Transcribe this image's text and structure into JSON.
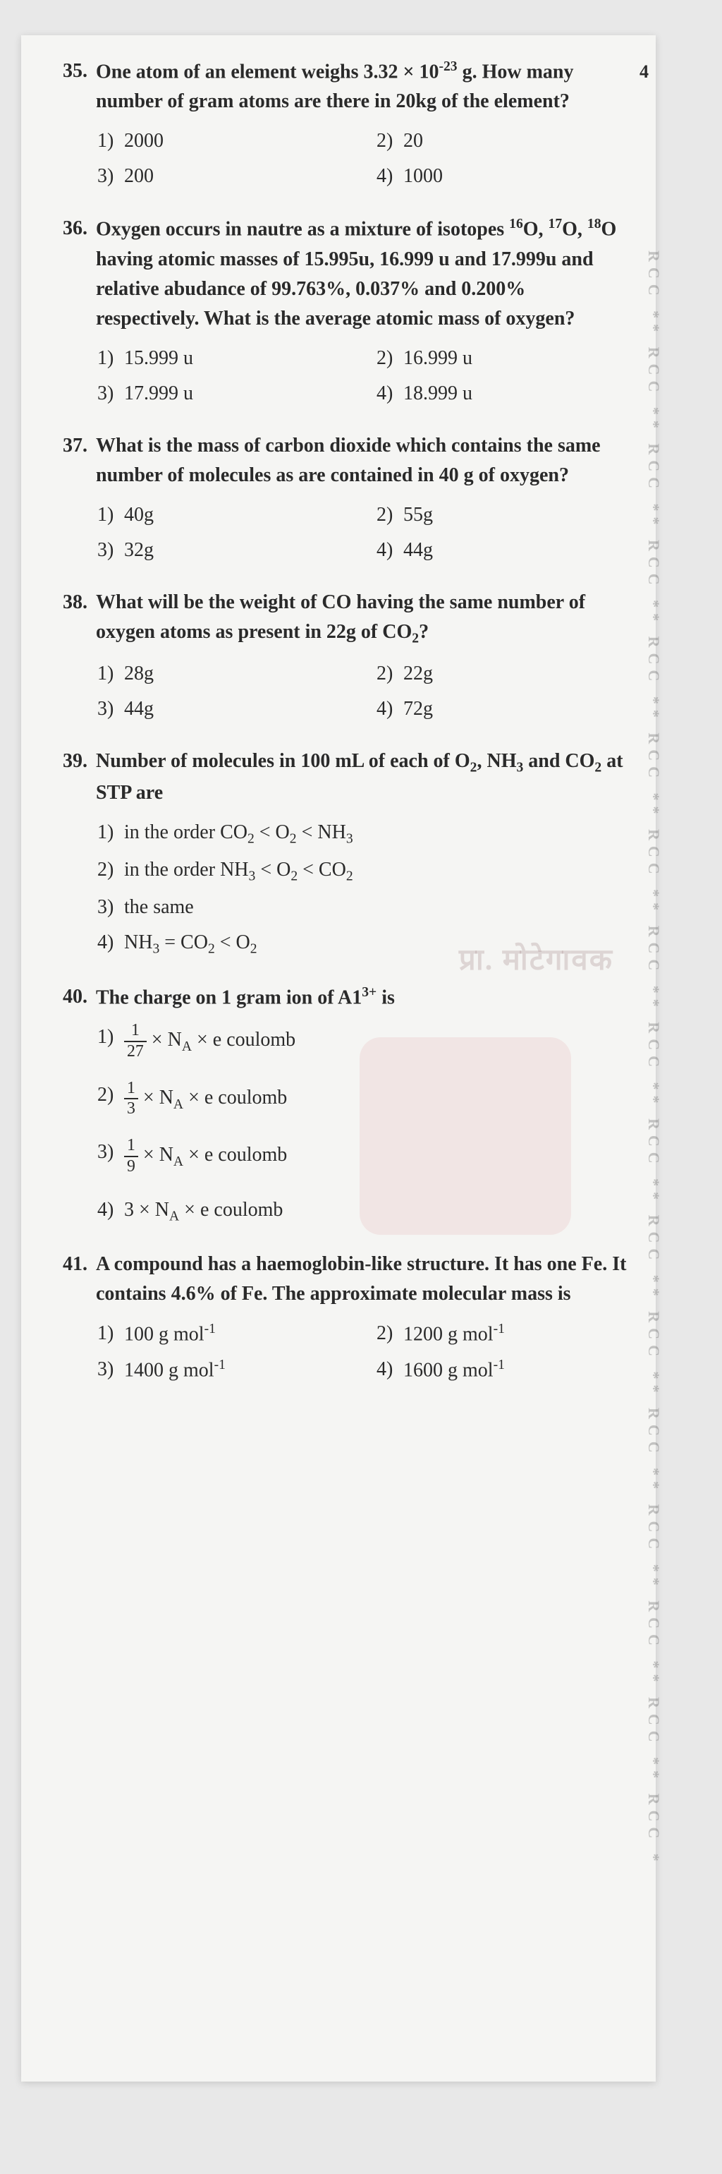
{
  "watermarks": {
    "side": "RCC ** RCC ** RCC ** RCC ** RCC ** RCC ** RCC ** RCC ** RCC ** RCC ** RCC ** RCC ** RCC ** RCC ** RCC ** RCC ** RCC *",
    "center": "प्रा. मोटेगावक"
  },
  "questions": [
    {
      "num": "35.",
      "stem_html": "One atom of an element weighs 3.32 × 10<sup>-23</sup> g. How many number of gram atoms are there in 20kg of the element?",
      "margin": "4",
      "options": [
        {
          "n": "1)",
          "t": "2000"
        },
        {
          "n": "2)",
          "t": "20"
        },
        {
          "n": "3)",
          "t": "200"
        },
        {
          "n": "4)",
          "t": "1000"
        }
      ],
      "layout": "two-col"
    },
    {
      "num": "36.",
      "stem_html": "Oxygen occurs in nautre as a mixture of isotopes <sup>16</sup>O, <sup>17</sup>O, <sup>18</sup>O having atomic masses of 15.995u, 16.999 u and 17.999u and relative abudance of 99.763%, 0.037% and 0.200% respectively. What is the average atomic mass of oxygen?",
      "options": [
        {
          "n": "1)",
          "t": "15.999 u"
        },
        {
          "n": "2)",
          "t": "16.999 u"
        },
        {
          "n": "3)",
          "t": "17.999 u"
        },
        {
          "n": "4)",
          "t": "18.999 u"
        }
      ],
      "layout": "two-col"
    },
    {
      "num": "37.",
      "stem_html": "What is the mass of carbon dioxide which contains the same number of molecules as are contained in 40 g of oxygen?",
      "options": [
        {
          "n": "1)",
          "t": "40g"
        },
        {
          "n": "2)",
          "t": "55g"
        },
        {
          "n": "3)",
          "t": "32g"
        },
        {
          "n": "4)",
          "t": "44g"
        }
      ],
      "layout": "two-col"
    },
    {
      "num": "38.",
      "stem_html": "What will be the weight of CO having the same number of oxygen atoms as present in 22g of CO<sub>2</sub>?",
      "options": [
        {
          "n": "1)",
          "t": "28g"
        },
        {
          "n": "2)",
          "t": "22g"
        },
        {
          "n": "3)",
          "t": "44g"
        },
        {
          "n": "4)",
          "t": "72g"
        }
      ],
      "layout": "two-col"
    },
    {
      "num": "39.",
      "stem_html": "Number of molecules in 100 mL of each of O<sub>2</sub>, NH<sub>3</sub> and CO<sub>2</sub> at STP are",
      "options": [
        {
          "n": "1)",
          "t_html": "in the order CO<sub>2</sub> < O<sub>2</sub> < NH<sub>3</sub>"
        },
        {
          "n": "2)",
          "t_html": "in the order NH<sub>3</sub> < O<sub>2</sub> < CO<sub>2</sub>"
        },
        {
          "n": "3)",
          "t_html": "the same"
        },
        {
          "n": "4)",
          "t_html": "NH<sub>3</sub> = CO<sub>2</sub> < O<sub>2</sub>"
        }
      ],
      "layout": "one-col"
    },
    {
      "num": "40.",
      "stem_html": "The charge on 1 gram ion of A1<sup>3+</sup> is",
      "options": [
        {
          "n": "1)",
          "t_html": "<span class=\"frac\"><span class=\"num\">1</span><span class=\"den\">27</span></span> × N<sub>A</sub> × e coulomb"
        },
        {
          "n": "2)",
          "t_html": "<span class=\"frac\"><span class=\"num\">1</span><span class=\"den\">3</span></span> × N<sub>A</sub> × e coulomb"
        },
        {
          "n": "3)",
          "t_html": "<span class=\"frac\"><span class=\"num\">1</span><span class=\"den\">9</span></span> × N<sub>A</sub> × e coulomb"
        },
        {
          "n": "4)",
          "t_html": "3 × N<sub>A</sub> × e coulomb"
        }
      ],
      "layout": "one-col-spaced"
    },
    {
      "num": "41.",
      "stem_html": "A compound has a haemoglobin-like structure. It has one Fe. It contains 4.6% of Fe. The approximate molecular mass is",
      "options": [
        {
          "n": "1)",
          "t_html": "100 g mol<sup>-1</sup>"
        },
        {
          "n": "2)",
          "t_html": "1200 g mol<sup>-1</sup>"
        },
        {
          "n": "3)",
          "t_html": "1400 g mol<sup>-1</sup>"
        },
        {
          "n": "4)",
          "t_html": "1600 g mol<sup>-1</sup>"
        }
      ],
      "layout": "two-col"
    }
  ]
}
